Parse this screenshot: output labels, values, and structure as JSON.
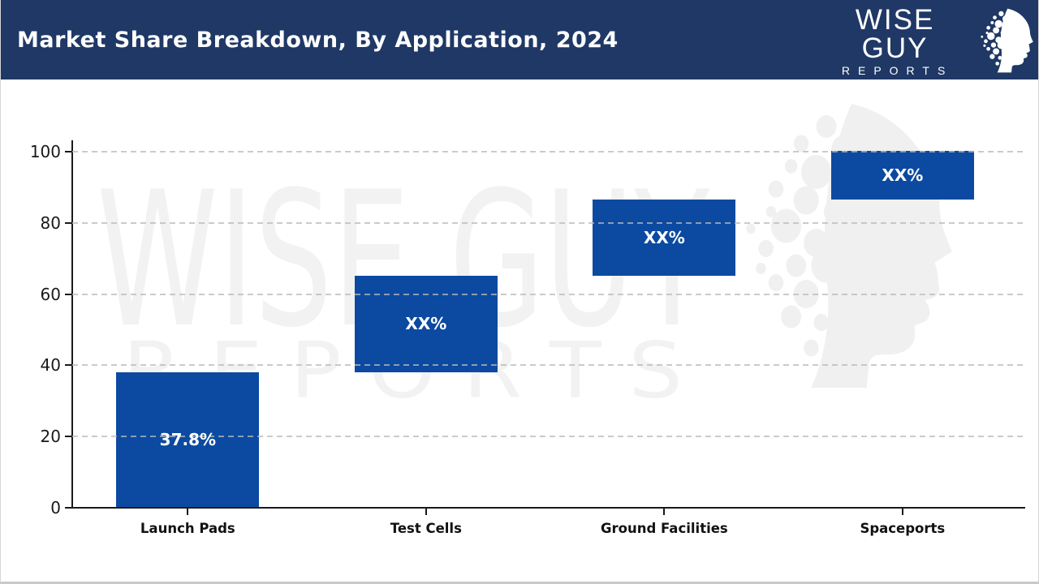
{
  "header": {
    "title": "Market Share Breakdown, By Application, 2024",
    "logo": {
      "line1": "WISE GUY",
      "line2": "REPORTS"
    }
  },
  "watermark": {
    "line1": "WISE GUY",
    "line2": "R E P O R T S"
  },
  "chart_data": {
    "type": "bar",
    "subtype": "waterfall",
    "title": "Market Share Breakdown, By Application, 2024",
    "xlabel": "",
    "ylabel": "",
    "categories": [
      "Launch Pads",
      "Test Cells",
      "Ground Facilities",
      "Spaceports"
    ],
    "segments": [
      {
        "category": "Launch Pads",
        "start": 0,
        "end": 37.8,
        "label": "37.8%"
      },
      {
        "category": "Test Cells",
        "start": 37.8,
        "end": 65.0,
        "label": "XX%"
      },
      {
        "category": "Ground Facilities",
        "start": 65.0,
        "end": 86.3,
        "label": "XX%"
      },
      {
        "category": "Spaceports",
        "start": 86.3,
        "end": 100,
        "label": "XX%"
      }
    ],
    "y_ticks": [
      0,
      20,
      40,
      60,
      80,
      100
    ],
    "ylim": [
      0,
      100
    ],
    "grid": "horizontal-dashed",
    "legend": "none",
    "bar_color": "#0B4AA0",
    "grid_color": "#d9d9d9",
    "axis_color": "#1a1a1a",
    "header_bg_color": "#1F3866",
    "label_text_color": "#ffffff",
    "watermark_color": "#f2f2f2"
  }
}
